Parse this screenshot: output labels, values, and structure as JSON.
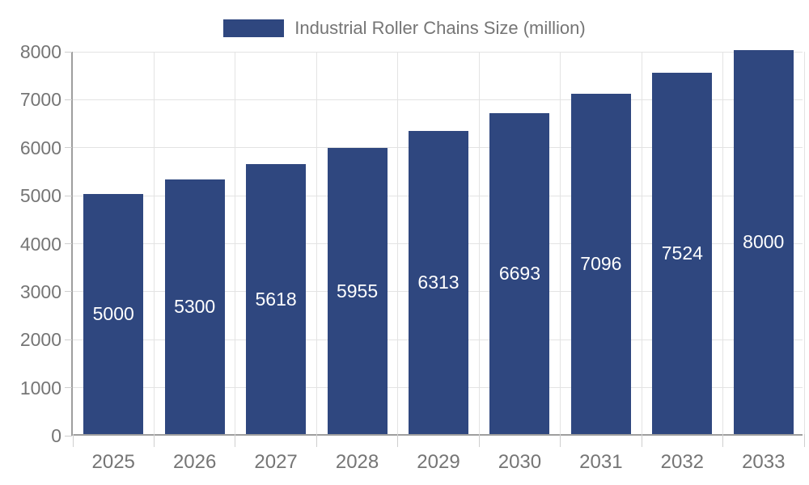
{
  "legend": {
    "label": "Industrial Roller Chains Size (million)"
  },
  "chart_data": {
    "type": "bar",
    "title": "Industrial Roller Chains Size (million)",
    "series_name": "Industrial Roller Chains Size (million)",
    "categories": [
      "2025",
      "2026",
      "2027",
      "2028",
      "2029",
      "2030",
      "2031",
      "2032",
      "2033"
    ],
    "values": [
      5000,
      5300,
      5618,
      5955,
      6313,
      6693,
      7096,
      7524,
      8000
    ],
    "value_labels": [
      "5000",
      "5300",
      "5618",
      "5955",
      "6313",
      "6693",
      "7096",
      "7524",
      "8000"
    ],
    "xlabel": "",
    "ylabel": "",
    "ylim": [
      0,
      8000
    ],
    "ytick_step": 1000,
    "yticks": [
      0,
      1000,
      2000,
      3000,
      4000,
      5000,
      6000,
      7000,
      8000
    ],
    "grid": true,
    "legend_position": "top-center",
    "value_label_position": "center-of-bar",
    "colors": {
      "bar": "#2F477F",
      "value_text": "#ffffff",
      "axis_labels": "#757575",
      "grid_lines": "#e3e3e3",
      "axis_lines": "#9e9e9e",
      "ticks": "#cfcfcf",
      "background": "#ffffff"
    }
  }
}
